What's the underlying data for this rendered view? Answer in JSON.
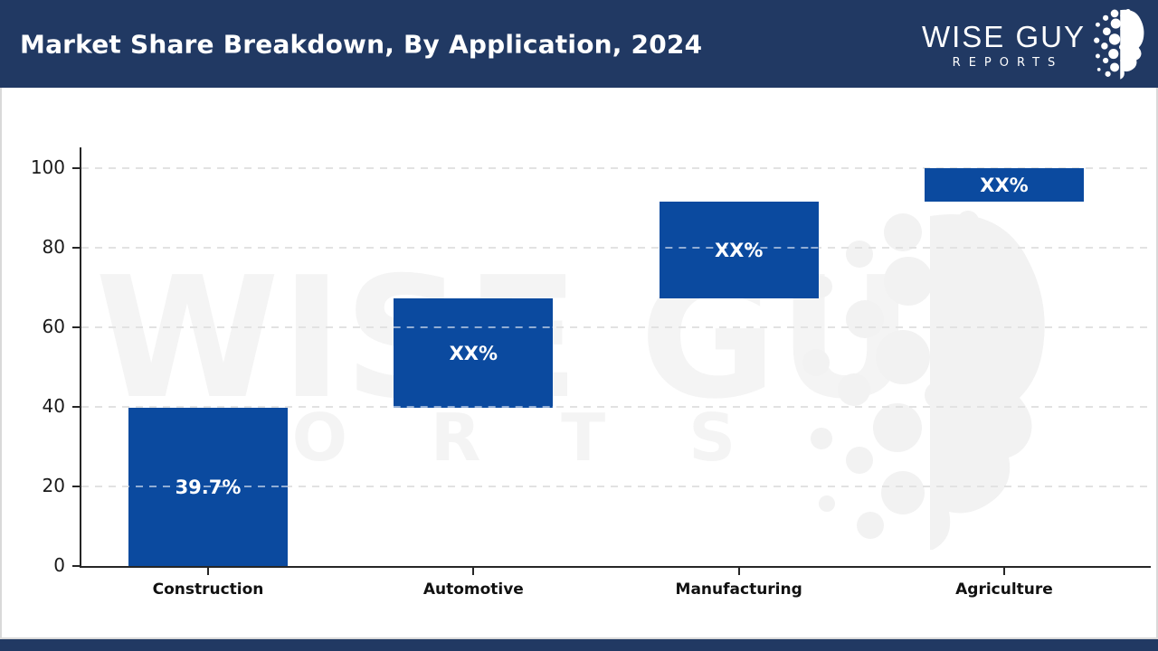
{
  "header": {
    "title": "Market Share Breakdown, By Application, 2024",
    "logo": {
      "line1": "WISE GUY",
      "line2": "REPORTS"
    }
  },
  "watermark": {
    "line1": "WISE GU",
    "line2": "PORTS"
  },
  "chart_data": {
    "type": "bar",
    "subtype": "floating-waterfall",
    "title": "Market Share Breakdown, By Application, 2024",
    "categories": [
      "Construction",
      "Automotive",
      "Manufacturing",
      "Agriculture"
    ],
    "bars": [
      {
        "category": "Construction",
        "start": 0,
        "end": 39.7,
        "label": "39.7%"
      },
      {
        "category": "Automotive",
        "start": 39.7,
        "end": 67.3,
        "label": "XX%"
      },
      {
        "category": "Manufacturing",
        "start": 67.3,
        "end": 91.5,
        "label": "XX%"
      },
      {
        "category": "Agriculture",
        "start": 91.5,
        "end": 100,
        "label": "XX%"
      }
    ],
    "xlabel": "",
    "ylabel": "",
    "yticks": [
      0,
      20,
      40,
      60,
      80,
      100
    ],
    "ylim": [
      0,
      105
    ],
    "grid": "dashed-horizontal",
    "legend": false,
    "colors": {
      "bar": "#0b4a9f",
      "bar_label": "#ffffff",
      "axis": "#262626",
      "gridline": "#e2e2e2",
      "header_navy": "#213963",
      "watermark": "#f4f4f4"
    }
  }
}
